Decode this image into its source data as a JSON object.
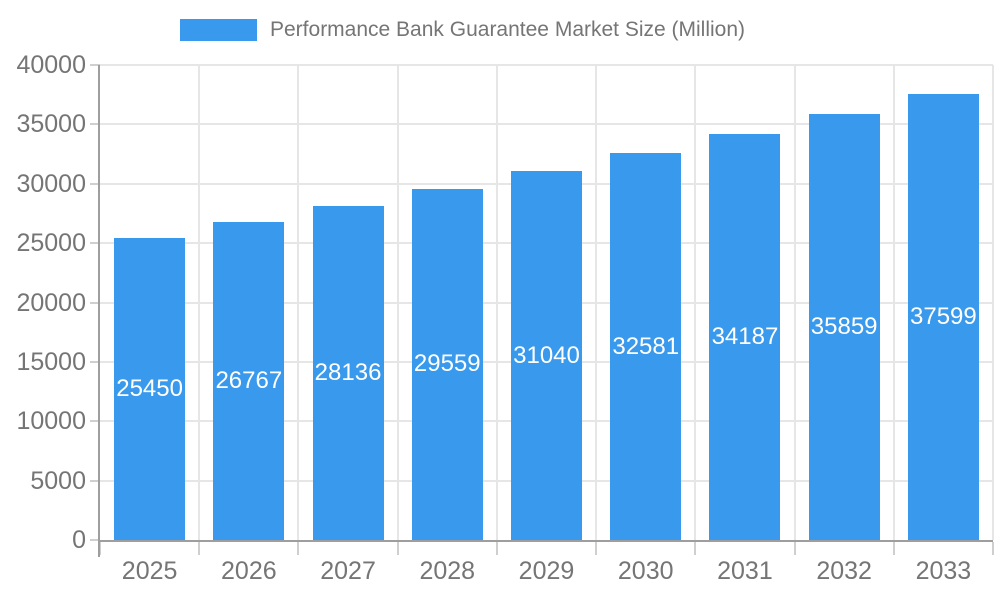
{
  "chart_data": {
    "type": "bar",
    "title": "Performance Bank Guarantee Market Size (Million)",
    "categories": [
      "2025",
      "2026",
      "2027",
      "2028",
      "2029",
      "2030",
      "2031",
      "2032",
      "2033"
    ],
    "values": [
      25450,
      26767,
      28136,
      29559,
      31040,
      32581,
      34187,
      35859,
      37599
    ],
    "bar_value_labels": [
      "25450",
      "26767",
      "28136",
      "29559",
      "31040",
      "32581",
      "34187",
      "35859",
      "37599"
    ],
    "ytick_labels": [
      "0",
      "5000",
      "10000",
      "15000",
      "20000",
      "25000",
      "30000",
      "35000",
      "40000"
    ],
    "ylim": [
      0,
      40000
    ],
    "ytick_step": 5000,
    "xlabel": "",
    "ylabel": "",
    "grid": true,
    "legend_position": "top",
    "colors": {
      "bar": "#3999EC",
      "axis": "#9E9E9E",
      "grid": "#E6E6E6",
      "tick": "#CFCFCF",
      "axis_label": "#757575",
      "title": "#757575",
      "bar_label": "#FFFFFF",
      "background": "#FFFFFF"
    }
  }
}
